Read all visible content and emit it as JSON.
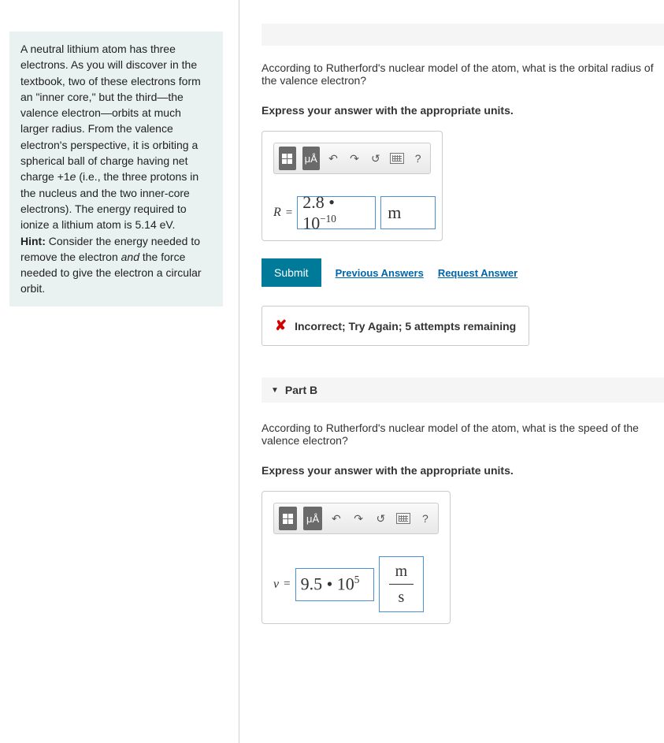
{
  "sidebar": {
    "hint_html": "A neutral lithium atom has three electrons. As you will discover in the textbook, two of these electrons form an \"inner core,\" but the third—the valence electron—orbits at much larger radius. From the valence electron's perspective, it is orbiting a spherical ball of charge having net charge +1<i>e</i> (i.e., the three protons in the nucleus and the two inner-core electrons). The energy required to ionize a lithium atom is 5.14 eV.<br><b>Hint:</b> Consider the energy needed to remove the electron <i>and</i> the force needed to give the electron a circular orbit."
  },
  "partA": {
    "question": "According to Rutherford's nuclear model of the atom, what is the orbital radius of the valence electron?",
    "instruction": "Express your answer with the appropriate units.",
    "var": "R",
    "value_html": "2.8 • 10<sup>−10</sup>",
    "unit": "m",
    "submit": "Submit",
    "prev": "Previous Answers",
    "request": "Request Answer",
    "feedback": "Incorrect; Try Again; 5 attempts remaining",
    "mu": "μÅ",
    "help": "?"
  },
  "partB": {
    "header": "Part B",
    "question": "According to Rutherford's nuclear model of the atom, what is the speed of the valence electron?",
    "instruction": "Express your answer with the appropriate units.",
    "var": "v",
    "value_html": "9.5 • 10<sup>5</sup>",
    "unit_num": "m",
    "unit_den": "s",
    "mu": "μÅ",
    "help": "?"
  }
}
